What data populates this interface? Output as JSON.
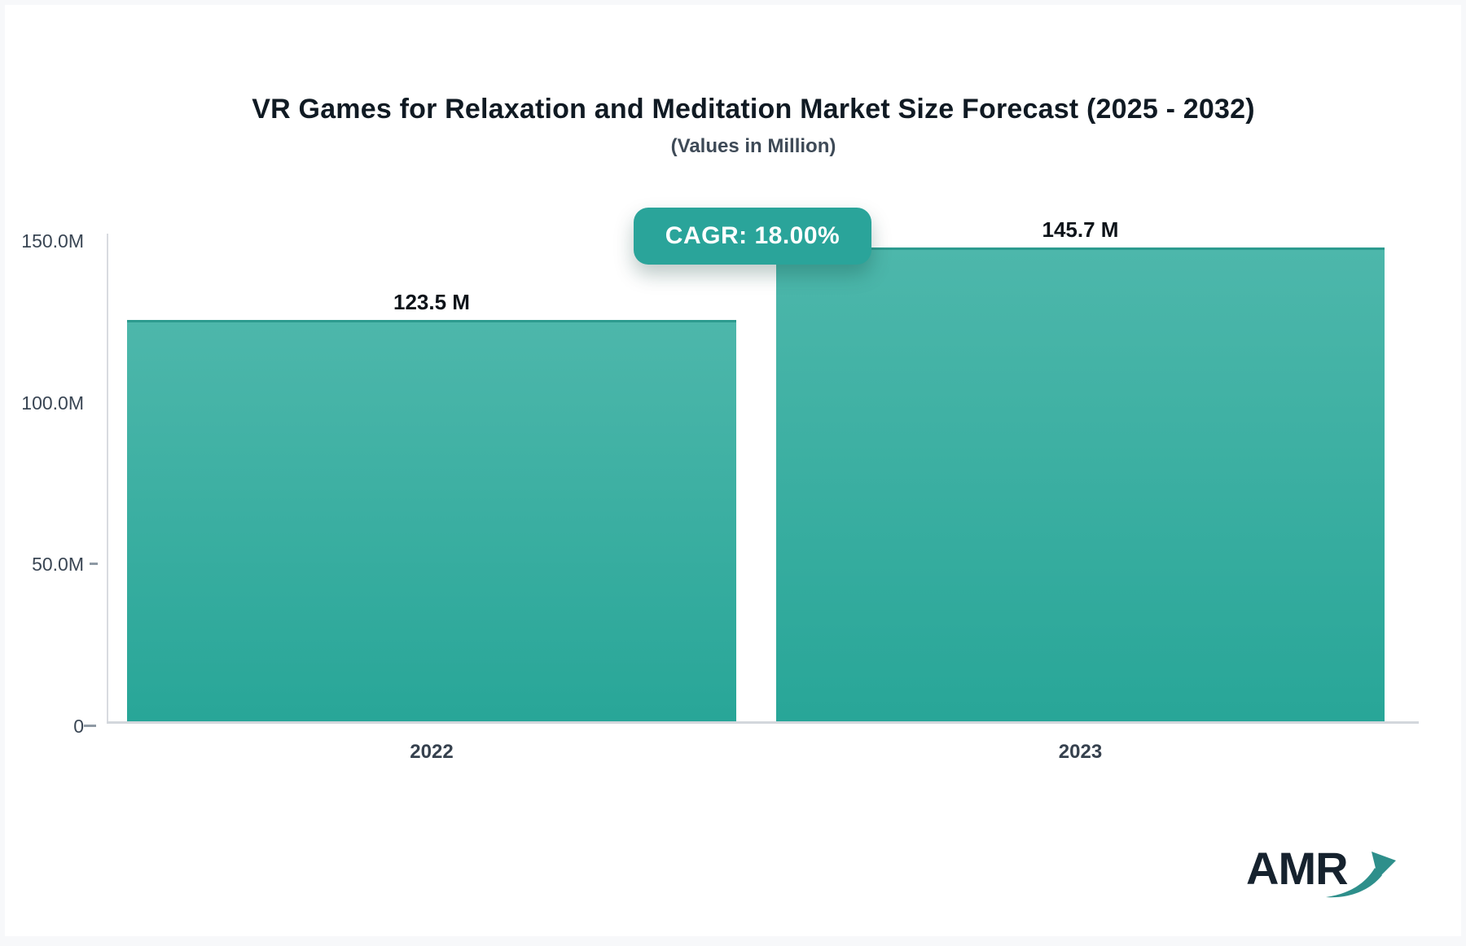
{
  "page": {
    "background_color": "#f7f8fa",
    "card_background_color": "#ffffff"
  },
  "header": {
    "title": "VR Games for Relaxation and Meditation Market Size Forecast (2025 - 2032)",
    "subtitle": "(Values in Million)"
  },
  "cagr_badge": {
    "label": "CAGR: 18.00%",
    "background_color": "#2aa49a",
    "text_color": "#ffffff"
  },
  "chart_data": {
    "type": "bar",
    "title": "VR Games for Relaxation and Meditation Market Size Forecast (2025 - 2032)",
    "subtitle": "(Values in Million)",
    "unit": "Million",
    "categories": [
      "2022",
      "2023"
    ],
    "values": [
      123.5,
      145.7
    ],
    "value_labels": [
      "123.5 M",
      "145.7 M"
    ],
    "cagr_percent": 18.0,
    "ylim": [
      0,
      150
    ],
    "yticks": [
      {
        "label": "150.0M",
        "value": 150
      },
      {
        "label": "100.0M",
        "value": 100
      },
      {
        "label": "50.0M",
        "value": 50
      },
      {
        "label": "0",
        "value": 0
      }
    ],
    "grid": false,
    "legend_position": "none",
    "bar_color_top": "#4db7ab",
    "bar_color_bottom": "#28a698",
    "bar_border_color": "#2d9b8f",
    "axis_color": "#d3d7dc",
    "tick_label_color": "#3a4654"
  },
  "logo": {
    "text": "AMR",
    "icon": "growth-arrow-icon",
    "text_color": "#16222e",
    "arrow_color": "#2e8f8b"
  }
}
